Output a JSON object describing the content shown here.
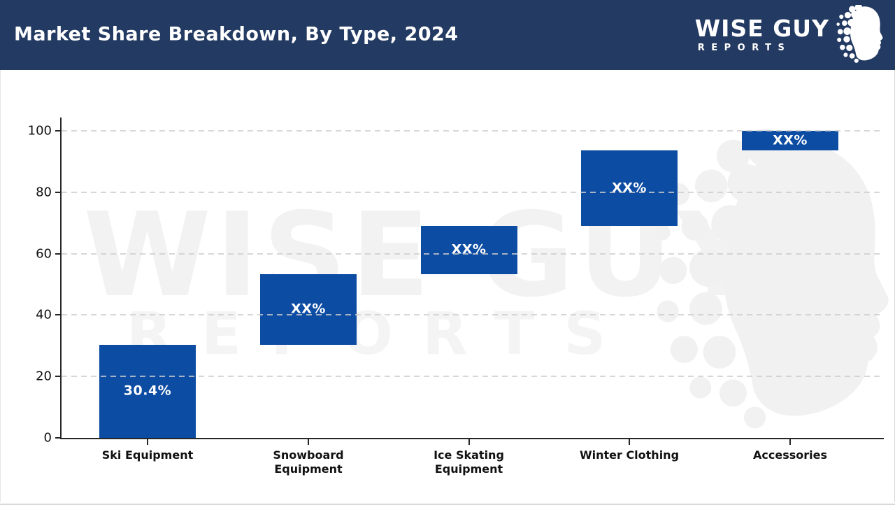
{
  "header": {
    "title": "Market Share Breakdown, By Type, 2024",
    "background_color": "#233a63",
    "logo": {
      "line1": "WISE GUY",
      "line2": "REPORTS"
    }
  },
  "watermark": {
    "line1": "WISE GUY",
    "line2": "REPORTS"
  },
  "chart_data": {
    "type": "bar",
    "subtype": "waterfall",
    "title": "Market Share Breakdown, By Type, 2024",
    "xlabel": "",
    "ylabel": "",
    "ylim": [
      0,
      100
    ],
    "yticks": [
      "0",
      "20",
      "40",
      "60",
      "80",
      "100"
    ],
    "ytick_values": [
      0,
      20,
      40,
      60,
      80,
      100
    ],
    "grid": "horizontal dashed, drawn over bars",
    "gridline_color": "#dcdcdc",
    "bar_color": "#0c4ca3",
    "bar_label_color": "#ffffff",
    "categories": [
      "Ski Equipment",
      "Snowboard Equipment",
      "Ice Skating Equipment",
      "Winter Clothing",
      "Accessories"
    ],
    "segments": [
      {
        "category": "Ski Equipment",
        "label_lines": [
          "Ski Equipment"
        ],
        "start": 0,
        "end": 30.4,
        "value_label": "30.4%"
      },
      {
        "category": "Snowboard Equipment",
        "label_lines": [
          "Snowboard",
          "Equipment"
        ],
        "start": 30.4,
        "end": 53.4,
        "value_label": "XX%"
      },
      {
        "category": "Ice Skating Equipment",
        "label_lines": [
          "Ice Skating",
          "Equipment"
        ],
        "start": 53.4,
        "end": 69.0,
        "value_label": "XX%"
      },
      {
        "category": "Winter Clothing",
        "label_lines": [
          "Winter Clothing"
        ],
        "start": 69.0,
        "end": 93.7,
        "value_label": "XX%"
      },
      {
        "category": "Accessories",
        "label_lines": [
          "Accessories"
        ],
        "start": 93.7,
        "end": 100.0,
        "value_label": "XX%"
      }
    ]
  }
}
